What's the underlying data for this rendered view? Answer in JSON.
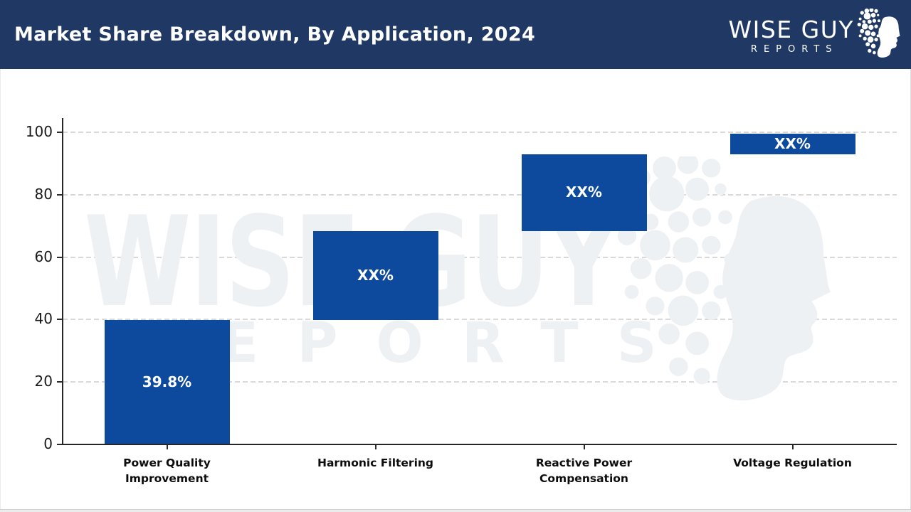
{
  "header": {
    "title": "Market Share Breakdown, By Application, 2024",
    "bg_color": "#203864",
    "logo": {
      "line1": "WISE GUY",
      "line2": "REPORTS"
    }
  },
  "watermark": {
    "line1": "WISE GUY",
    "line2": "REPORTS",
    "color": "#eef1f4"
  },
  "chart_data": {
    "type": "bar",
    "subtype": "waterfall",
    "title": "Market Share Breakdown, By Application, 2024",
    "categories": [
      "Power Quality Improvement",
      "Harmonic Filtering",
      "Reactive Power Compensation",
      "Voltage Regulation"
    ],
    "segments": [
      {
        "category": "Power Quality Improvement",
        "start": 0,
        "end": 39.8,
        "label": "39.8%"
      },
      {
        "category": "Harmonic Filtering",
        "start": 39.8,
        "end": 68.4,
        "label": "XX%"
      },
      {
        "category": "Reactive Power Compensation",
        "start": 68.4,
        "end": 92.9,
        "label": "XX%"
      },
      {
        "category": "Voltage Regulation",
        "start": 92.9,
        "end": 99.5,
        "label": "XX%"
      }
    ],
    "xlabel": "",
    "ylabel": "",
    "ylim": [
      0,
      100
    ],
    "yticks": [
      0,
      20,
      40,
      60,
      80,
      100
    ],
    "grid": "horizontal-dashed",
    "legend": "none",
    "bar_color": "#0d4a9e",
    "bar_label_color": "#ffffff",
    "axis_color": "#262626",
    "grid_color": "#d9d9d9"
  }
}
